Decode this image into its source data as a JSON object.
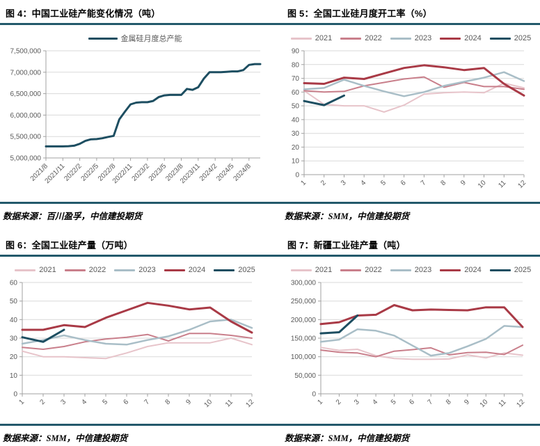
{
  "colors": {
    "rule": "#23596b",
    "grid": "#d9d9d9",
    "axis": "#a0a0a0",
    "tick_label": "#595959",
    "legend_label": "#595959",
    "title": "#000000"
  },
  "chart_data": [
    {
      "id": "fig4",
      "type": "line",
      "title": "图 4：中国工业硅产能变化情况（吨）",
      "source": "数据来源：百川盈孚，中信建投期货",
      "x_tick_labels": [
        "2021/8",
        "2021/11",
        "2022/2",
        "2022/5",
        "2022/8",
        "2022/11",
        "2023/2",
        "2023/5",
        "2023/8",
        "2023/11",
        "2024/2",
        "2024/5",
        "2024/8"
      ],
      "x_tick_every": 3,
      "n_points": 39,
      "ylim": [
        5000000,
        7500000
      ],
      "ytick_step": 500000,
      "y_format": "comma",
      "legend_position": "top-center",
      "grid": true,
      "series": [
        {
          "name": "金属硅月度总产能",
          "color": "#1d4e61",
          "width": 3,
          "values": [
            5270000,
            5270000,
            5270000,
            5270000,
            5275000,
            5285000,
            5330000,
            5400000,
            5435000,
            5440000,
            5460000,
            5490000,
            5515000,
            5900000,
            6080000,
            6250000,
            6290000,
            6300000,
            6300000,
            6330000,
            6420000,
            6460000,
            6470000,
            6470000,
            6470000,
            6610000,
            6590000,
            6650000,
            6850000,
            7000000,
            7000000,
            7000000,
            7010000,
            7020000,
            7020000,
            7050000,
            7170000,
            7190000,
            7190000
          ]
        }
      ]
    },
    {
      "id": "fig5",
      "type": "line",
      "title": "图 5：全国工业硅月度开工率（%）",
      "source": "数据来源：SMM，中信建投期货",
      "x_tick_labels": [
        "1",
        "2",
        "3",
        "4",
        "5",
        "6",
        "7",
        "8",
        "9",
        "10",
        "11",
        "12"
      ],
      "x_tick_every": 1,
      "n_points": 12,
      "ylim": [
        0,
        90
      ],
      "ytick_step": 10,
      "y_format": "plain",
      "legend_position": "top-center",
      "grid": true,
      "series": [
        {
          "name": "2021",
          "color": "#e7c4ca",
          "width": 2,
          "values": [
            61,
            51,
            50,
            50,
            45.5,
            50.5,
            58.5,
            59.5,
            60,
            59.5,
            66.5,
            63
          ]
        },
        {
          "name": "2022",
          "color": "#c97f8b",
          "width": 2,
          "values": [
            61,
            60,
            60.5,
            64.5,
            67,
            69.5,
            71,
            63.5,
            67,
            64,
            64,
            62
          ]
        },
        {
          "name": "2023",
          "color": "#a9bec7",
          "width": 2.5,
          "values": [
            62,
            63,
            69,
            64.5,
            60.5,
            57,
            60,
            64.5,
            67.5,
            70.5,
            74.5,
            68
          ]
        },
        {
          "name": "2024",
          "color": "#a93a46",
          "width": 3,
          "values": [
            66.5,
            66,
            70.5,
            69.5,
            73.5,
            77.5,
            79.5,
            78,
            76,
            77.5,
            66,
            57.5
          ]
        },
        {
          "name": "2025",
          "color": "#1d4e61",
          "width": 3,
          "values": [
            53.5,
            50.5,
            57.5
          ]
        }
      ]
    },
    {
      "id": "fig6",
      "type": "line",
      "title": "图 6：全国工业硅产量（万吨）",
      "source": "数据来源：SMM，中信建投期货",
      "x_tick_labels": [
        "1",
        "2",
        "3",
        "4",
        "5",
        "6",
        "7",
        "8",
        "9",
        "10",
        "11",
        "12"
      ],
      "x_tick_every": 1,
      "n_points": 12,
      "ylim": [
        0,
        60
      ],
      "ytick_step": 10,
      "y_format": "plain",
      "legend_position": "top-center",
      "grid": true,
      "series": [
        {
          "name": "2021",
          "color": "#e7c4ca",
          "width": 2,
          "values": [
            23,
            20,
            20,
            19.5,
            19,
            22,
            25.5,
            27.5,
            27.5,
            27.5,
            30,
            26.5
          ]
        },
        {
          "name": "2022",
          "color": "#c97f8b",
          "width": 2,
          "values": [
            25,
            24,
            25.5,
            28,
            29.5,
            30.5,
            32,
            28.5,
            32.5,
            32.5,
            31.5,
            30
          ]
        },
        {
          "name": "2023",
          "color": "#a9bec7",
          "width": 2.5,
          "values": [
            27,
            29,
            31.5,
            29,
            27,
            26.5,
            29,
            31,
            34.5,
            39,
            40,
            35.5
          ]
        },
        {
          "name": "2024",
          "color": "#a93a46",
          "width": 3,
          "values": [
            34.5,
            34.5,
            37,
            36,
            41,
            45,
            49,
            47.5,
            45.5,
            46.5,
            39,
            33
          ]
        },
        {
          "name": "2025",
          "color": "#1d4e61",
          "width": 3,
          "values": [
            30.5,
            28,
            34.5
          ]
        }
      ]
    },
    {
      "id": "fig7",
      "type": "line",
      "title": "图 7：新疆工业硅产量（吨）",
      "source": "数据来源：SMM，中信建投期货",
      "x_tick_labels": [
        "1",
        "2",
        "3",
        "4",
        "5",
        "6",
        "7",
        "8",
        "9",
        "10",
        "11",
        "12"
      ],
      "x_tick_every": 1,
      "n_points": 12,
      "ylim": [
        0,
        300000
      ],
      "ytick_step": 50000,
      "y_format": "comma",
      "legend_position": "top-center",
      "grid": true,
      "series": [
        {
          "name": "2021",
          "color": "#e7c4ca",
          "width": 2,
          "values": [
            125000,
            117000,
            120000,
            103000,
            95000,
            93000,
            93000,
            94000,
            105000,
            97000,
            110000,
            104000
          ]
        },
        {
          "name": "2022",
          "color": "#c97f8b",
          "width": 2,
          "values": [
            118000,
            112000,
            110000,
            100000,
            115000,
            119000,
            124000,
            105000,
            111000,
            112000,
            106000,
            131000
          ]
        },
        {
          "name": "2023",
          "color": "#a9bec7",
          "width": 2.5,
          "values": [
            140000,
            146000,
            174000,
            170000,
            157000,
            130000,
            103000,
            110000,
            128000,
            148000,
            183000,
            180000
          ]
        },
        {
          "name": "2024",
          "color": "#a93a46",
          "width": 3,
          "values": [
            188000,
            193000,
            211000,
            213000,
            239000,
            225000,
            227000,
            226000,
            225000,
            233000,
            233000,
            180000
          ]
        },
        {
          "name": "2025",
          "color": "#1d4e61",
          "width": 3,
          "values": [
            163000,
            166000,
            211000
          ]
        }
      ]
    }
  ]
}
